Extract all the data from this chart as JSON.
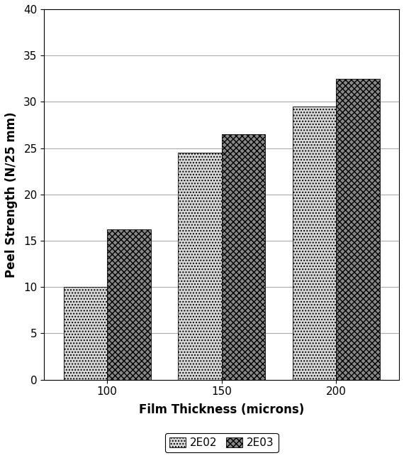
{
  "categories": [
    "100",
    "150",
    "200"
  ],
  "xlabel": "Film Thickness (microns)",
  "ylabel": "Peel Strength (N/25 mm)",
  "ylim": [
    0,
    40
  ],
  "yticks": [
    0,
    5,
    10,
    15,
    20,
    25,
    30,
    35,
    40
  ],
  "series": [
    {
      "label": "2E02",
      "values": [
        10.0,
        24.5,
        29.5
      ],
      "hatch": "....",
      "facecolor": "#d8d8d8",
      "edgecolor": "#000000"
    },
    {
      "label": "2E03",
      "values": [
        16.2,
        26.5,
        32.5
      ],
      "hatch": "xxxx",
      "facecolor": "#888888",
      "edgecolor": "#000000"
    }
  ],
  "bar_width": 0.38,
  "background_color": "#ffffff",
  "grid_color": "#aaaaaa",
  "figsize": [
    5.7,
    6.52
  ],
  "dpi": 100
}
